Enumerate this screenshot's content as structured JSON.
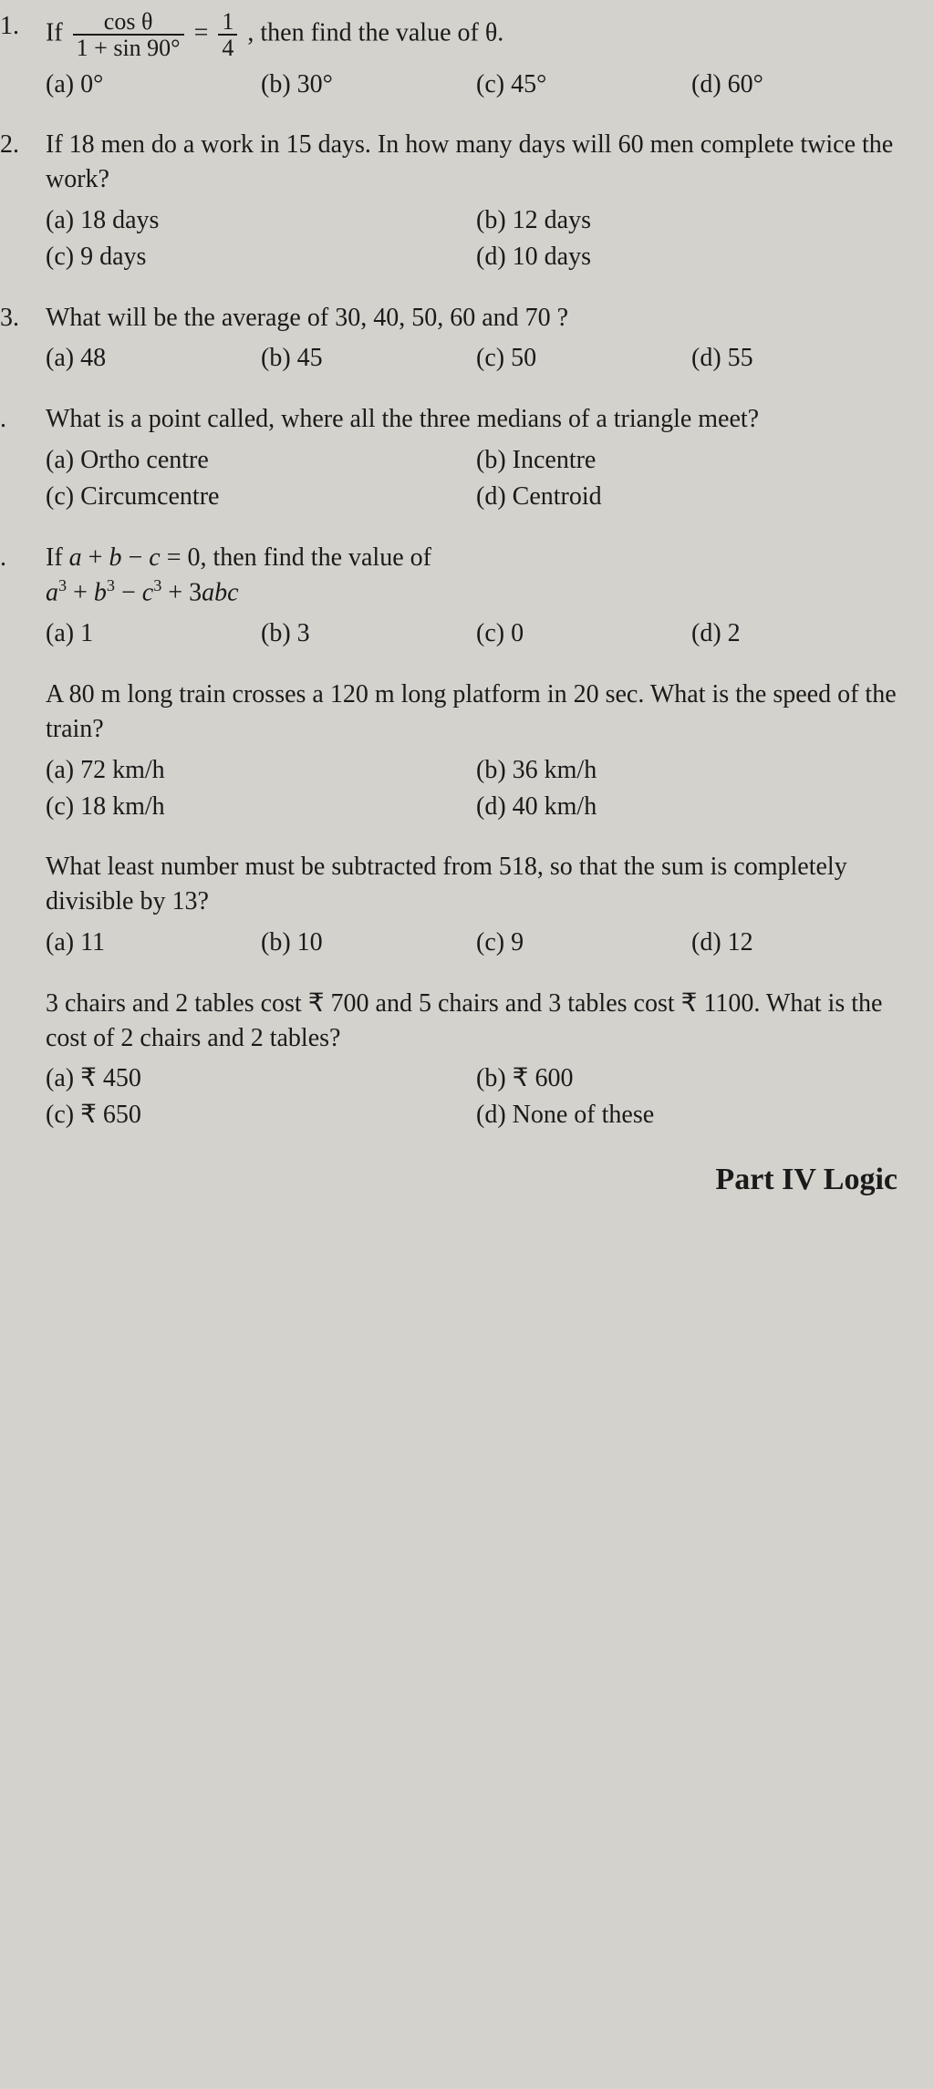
{
  "questions": [
    {
      "num": "1.",
      "text_pre": "If",
      "frac1_num": "cos θ",
      "frac1_den": "1 + sin 90°",
      "mid": " = ",
      "frac2_num": "1",
      "frac2_den": "4",
      "text_post": ", then find the value of θ.",
      "layout": "four",
      "opts": {
        "a": "(a) 0°",
        "b": "(b) 30°",
        "c": "(c) 45°",
        "d": "(d) 60°"
      }
    },
    {
      "num": "2.",
      "text": "If 18 men do a work in 15 days. In how many days will 60 men complete twice the work?",
      "layout": "two",
      "opts": {
        "a": "(a) 18 days",
        "b": "(b) 12 days",
        "c": "(c) 9 days",
        "d": "(d) 10 days"
      }
    },
    {
      "num": "3.",
      "text": "What will be the average of 30, 40, 50, 60 and 70 ?",
      "layout": "four",
      "opts": {
        "a": "(a) 48",
        "b": "(b) 45",
        "c": "(c) 50",
        "d": "(d) 55"
      }
    },
    {
      "num": ".",
      "text": "What is a point called, where all the three medians of a triangle meet?",
      "layout": "two",
      "opts": {
        "a": "(a) Ortho centre",
        "b": "(b) Incentre",
        "c": "(c) Circumcentre",
        "d": "(d) Centroid"
      }
    },
    {
      "num": ".",
      "text_html": "If <span class='italic'>a</span> + <span class='italic'>b</span> − <span class='italic'>c</span> = 0, then find the value of<br><span class='italic'>a</span><sup>3</sup> + <span class='italic'>b</span><sup>3</sup> − <span class='italic'>c</span><sup>3</sup> + 3<span class='italic'>abc</span>",
      "layout": "four",
      "opts": {
        "a": "(a) 1",
        "b": "(b) 3",
        "c": "(c) 0",
        "d": "(d) 2"
      }
    },
    {
      "num": "",
      "text": "A 80 m long train crosses a 120 m long platform in 20 sec. What is the speed of the train?",
      "layout": "two",
      "opts": {
        "a": "(a) 72 km/h",
        "b": "(b) 36 km/h",
        "c": "(c) 18 km/h",
        "d": "(d) 40 km/h"
      }
    },
    {
      "num": "",
      "text": "What least number must be subtracted from 518, so that the sum is completely divisible by 13?",
      "layout": "four",
      "opts": {
        "a": "(a) 11",
        "b": "(b) 10",
        "c": "(c) 9",
        "d": "(d) 12"
      }
    },
    {
      "num": "",
      "text": "3 chairs and 2 tables cost ₹ 700 and 5 chairs and 3 tables cost ₹ 1100. What is the cost of 2 chairs and 2 tables?",
      "layout": "two",
      "opts": {
        "a": "(a) ₹ 450",
        "b": "(b) ₹ 600",
        "c": "(c) ₹ 650",
        "d": "(d) None of these"
      }
    }
  ],
  "footer": "Part IV Logic"
}
